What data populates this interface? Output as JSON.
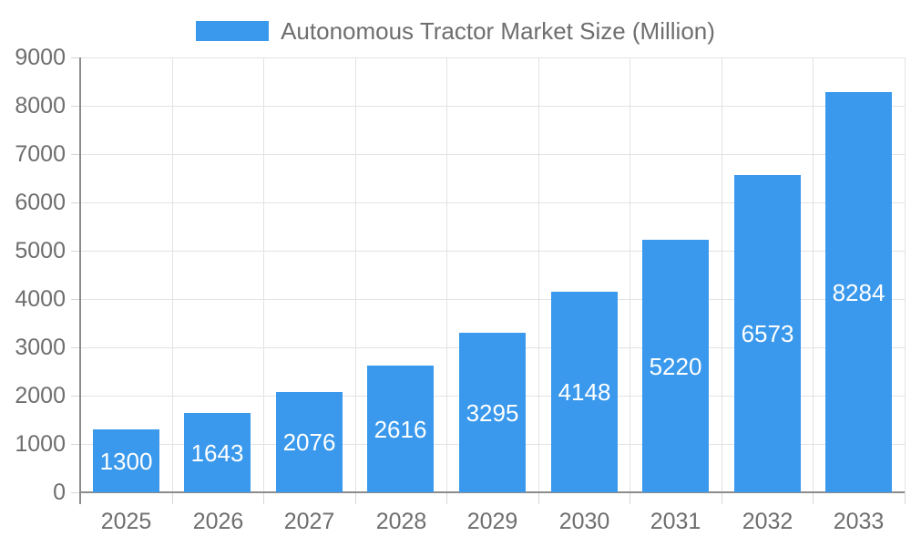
{
  "chart_data": {
    "type": "bar",
    "title": "Autonomous Tractor Market Size (Million)",
    "legend": {
      "position": "top",
      "entries": [
        "Autonomous Tractor Market Size (Million)"
      ]
    },
    "categories": [
      "2025",
      "2026",
      "2027",
      "2028",
      "2029",
      "2030",
      "2031",
      "2032",
      "2033"
    ],
    "values": [
      1300,
      1643,
      2076,
      2616,
      3295,
      4148,
      5220,
      6573,
      8284
    ],
    "xlabel": "",
    "ylabel": "",
    "ylim": [
      0,
      9000
    ],
    "ytick_step": 1000,
    "grid": true,
    "colors": {
      "bar": "#3a99ec",
      "value_label": "#ffffff",
      "axis_text": "#6e6e6e",
      "grid_line": "#e3e3e3",
      "axis_line": "#8c8c8c"
    }
  }
}
